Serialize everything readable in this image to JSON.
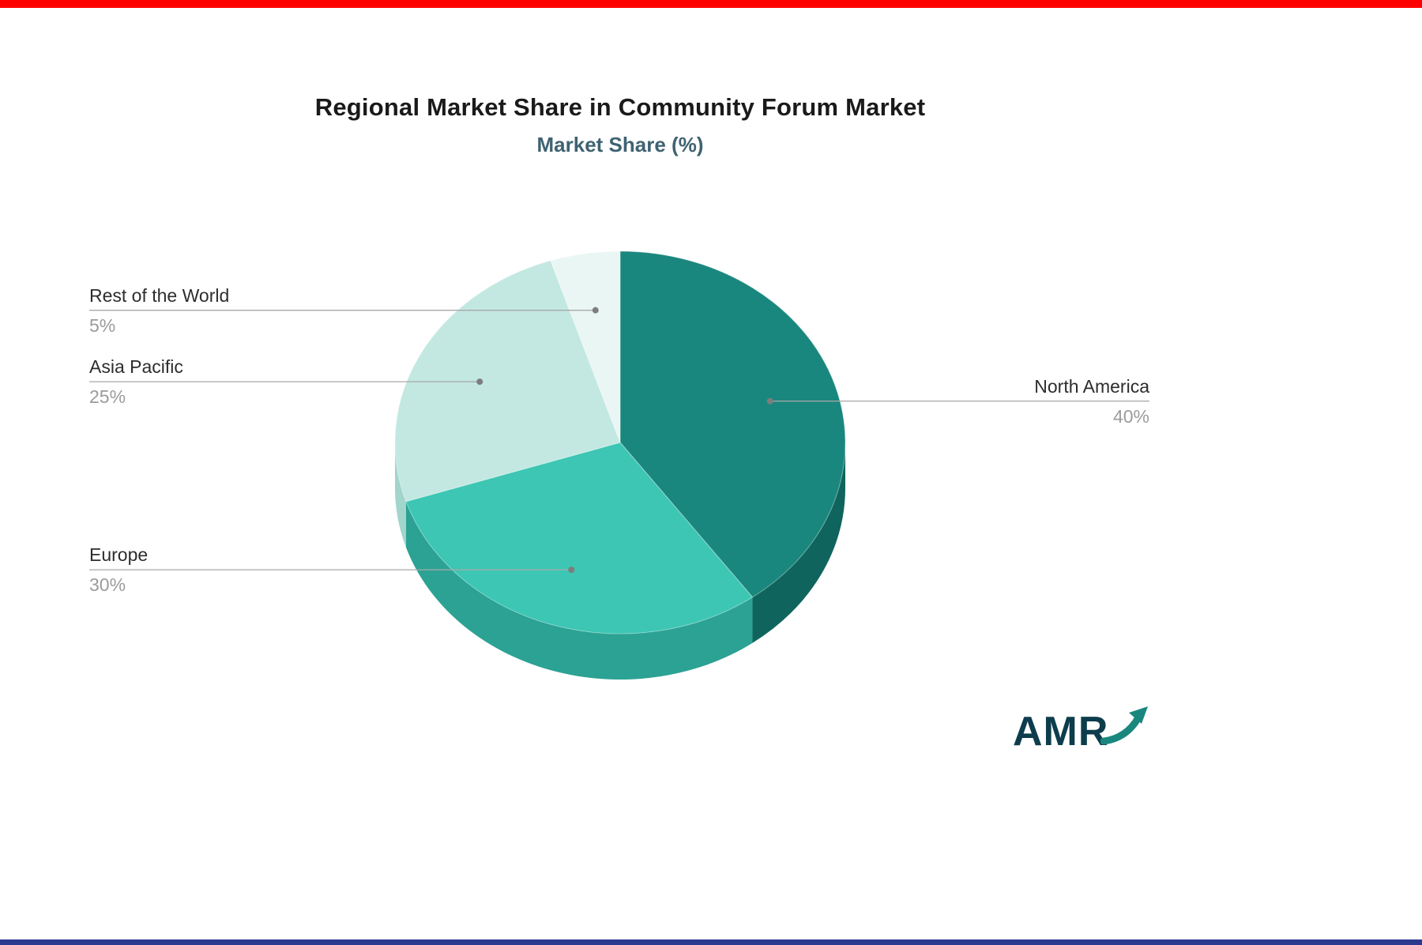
{
  "title": "Regional Market Share in Community Forum Market",
  "subtitle": "Market Share (%)",
  "brand": {
    "logo_text": "AMR",
    "logo_color": "#0d3d4d",
    "arrow_color": "#1a877e"
  },
  "callouts": [
    {
      "label": "North America",
      "value_label": "40%",
      "side": "right"
    },
    {
      "label": "Europe",
      "value_label": "30%",
      "side": "left"
    },
    {
      "label": "Asia Pacific",
      "value_label": "25%",
      "side": "left"
    },
    {
      "label": "Rest of the World",
      "value_label": "5%",
      "side": "left"
    }
  ],
  "chart_data": {
    "type": "pie",
    "title": "Regional Market Share in Community Forum Market",
    "subtitle": "Market Share (%)",
    "labels": [
      "North America",
      "Europe",
      "Asia Pacific",
      "Rest of the World"
    ],
    "values": [
      40,
      30,
      25,
      5
    ],
    "unit": "%",
    "style": "3d",
    "start_angle_deg": 0,
    "direction": "clockwise",
    "legend_position": "callout-labels",
    "colors": [
      "#1a877e",
      "#3cc6b3",
      "#c2e8e1",
      "#eaf6f4"
    ],
    "depth_colors": [
      "#0f655d",
      "#2ba294",
      "#a2d5cc",
      "#cde8e3"
    ],
    "leader_line_color": "#a8a8a8",
    "leader_dot_color": "#7d7d7d"
  }
}
